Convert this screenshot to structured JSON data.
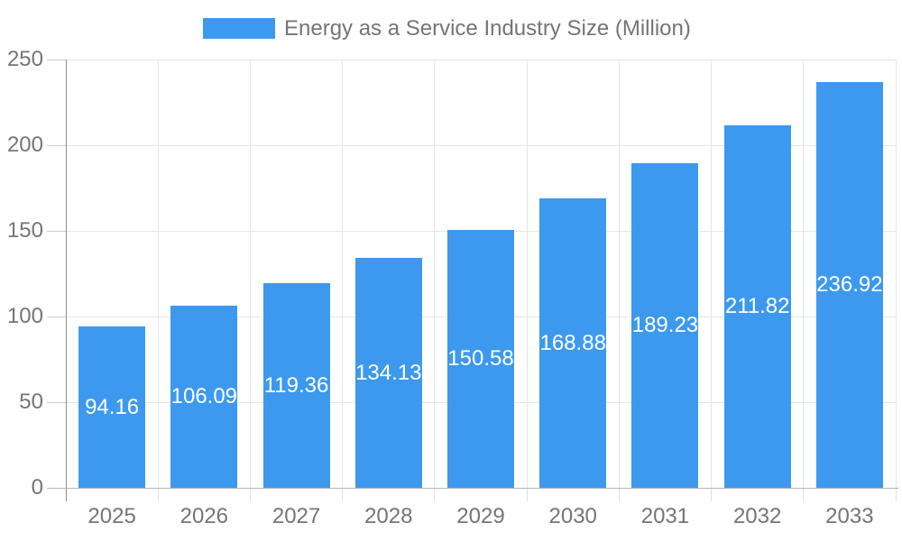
{
  "chart_data": {
    "type": "bar",
    "title": "Energy as a Service Industry Size (Million)",
    "legend_position": "top",
    "categories": [
      "2025",
      "2026",
      "2027",
      "2028",
      "2029",
      "2030",
      "2031",
      "2032",
      "2033"
    ],
    "series": [
      {
        "name": "Energy as a Service Industry Size (Million)",
        "values": [
          94.16,
          106.09,
          119.36,
          134.13,
          150.58,
          168.88,
          189.23,
          211.82,
          236.92
        ]
      }
    ],
    "value_labels": [
      "94.16",
      "106.09",
      "119.36",
      "134.13",
      "150.58",
      "168.88",
      "189.23",
      "211.82",
      "236.92"
    ],
    "xlabel": "",
    "ylabel": "",
    "ylim": [
      0,
      250
    ],
    "yticks": [
      0,
      50,
      100,
      150,
      200,
      250
    ],
    "grid": true,
    "colors": {
      "bar": "#3D99ED",
      "axis_text": "#757575",
      "value_text": "#ffffff",
      "gridline": "#e6e6e6",
      "y_axis_line": "#8f8f8f",
      "x_axis_line": "#b3b3b3",
      "y_tick": "#cccccc",
      "x_tick": "#e0e0e0"
    }
  }
}
